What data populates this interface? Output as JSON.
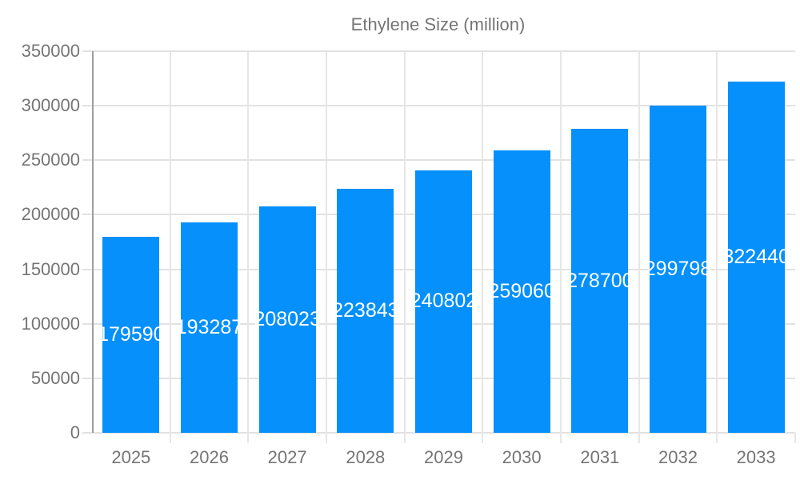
{
  "legend": {
    "label": "Ethylene Size (million)"
  },
  "colors": {
    "bar": "#0590fb",
    "bar_label": "#ffffff",
    "axis_text": "#757575",
    "grid_h": "#e2e2e2",
    "grid_v": "#e6e6e6",
    "axis_line": "#9e9e9e",
    "background": "#ffffff"
  },
  "chart_data": {
    "type": "bar",
    "title": "Ethylene Size (million)",
    "series": [
      {
        "name": "Ethylene Size (million)",
        "values": [
          179590,
          193287,
          208023,
          223843,
          240802,
          259060,
          278700,
          299798,
          322440
        ]
      }
    ],
    "categories": [
      "2025",
      "2026",
      "2027",
      "2028",
      "2029",
      "2030",
      "2031",
      "2032",
      "2033"
    ],
    "bar_labels": [
      "179590",
      "193287",
      "208023",
      "223843",
      "240802",
      "259060",
      "278700",
      "299798",
      "322440"
    ],
    "xlabel": "",
    "ylabel": "",
    "ylim": [
      0,
      350000
    ],
    "ytick_step": 50000,
    "ytick_labels": [
      "0",
      "50000",
      "100000",
      "150000",
      "200000",
      "250000",
      "300000",
      "350000"
    ],
    "grid": true,
    "legend_position": "top",
    "bar_label_position": "middle"
  }
}
